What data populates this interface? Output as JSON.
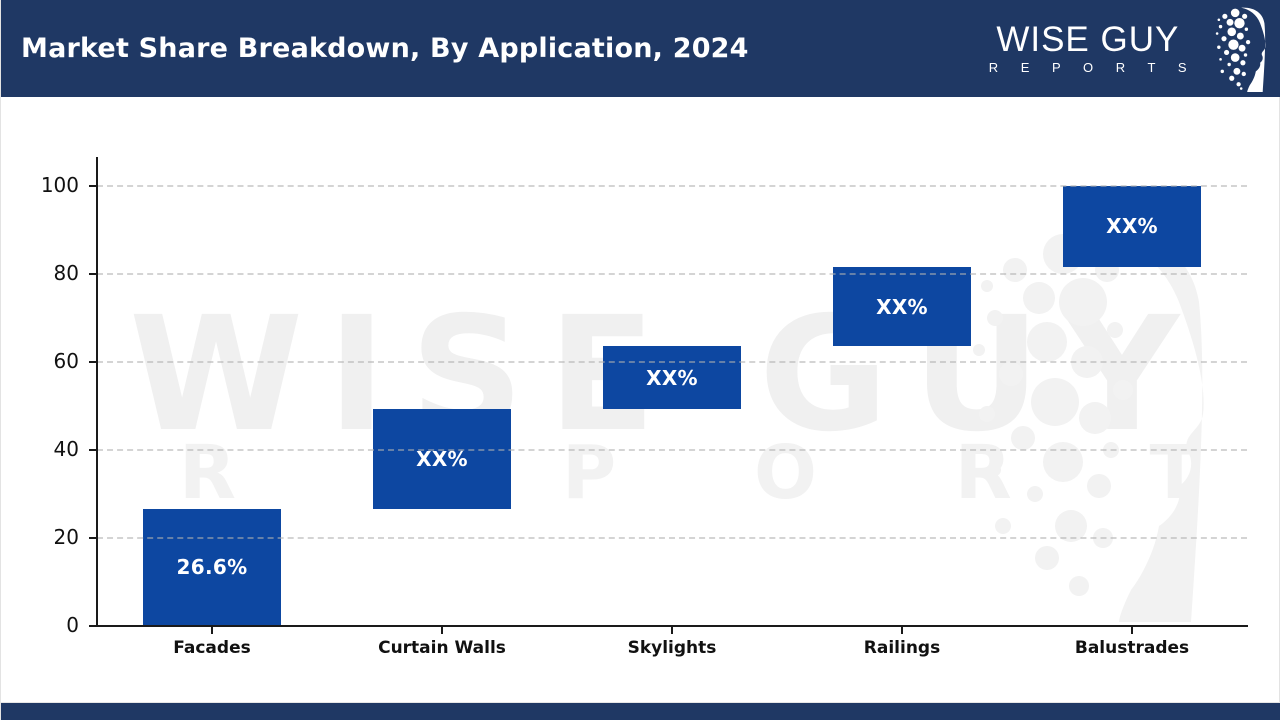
{
  "header": {
    "title": "Market Share Breakdown, By Application, 2024",
    "logo": {
      "line1": "WISE GUY",
      "line2": "R E P O R T S"
    }
  },
  "watermark": {
    "line1": "WISE GUY",
    "line2": "R E P O R T S"
  },
  "chart_data": {
    "type": "bar",
    "subtype": "waterfall",
    "title": "Market Share Breakdown, By Application, 2024",
    "categories": [
      "Facades",
      "Curtain Walls",
      "Skylights",
      "Railings",
      "Balustrades"
    ],
    "segments": [
      {
        "category": "Facades",
        "start": 0,
        "end": 26.6,
        "label": "26.6%"
      },
      {
        "category": "Curtain Walls",
        "start": 26.6,
        "end": 49.2,
        "label": "XX%"
      },
      {
        "category": "Skylights",
        "start": 49.2,
        "end": 63.6,
        "label": "XX%"
      },
      {
        "category": "Railings",
        "start": 63.6,
        "end": 81.4,
        "label": "XX%"
      },
      {
        "category": "Balustrades",
        "start": 81.4,
        "end": 100,
        "label": "XX%"
      }
    ],
    "xlabel": "",
    "ylabel": "",
    "ylim": [
      0,
      106
    ],
    "yticks": [
      0,
      20,
      40,
      60,
      80,
      100
    ],
    "grid": "horizontal-dashed",
    "legend": "none",
    "bar_color": "#0d47a1",
    "bar_label_color": "#ffffff",
    "axis_color": "#1a1a1a"
  }
}
